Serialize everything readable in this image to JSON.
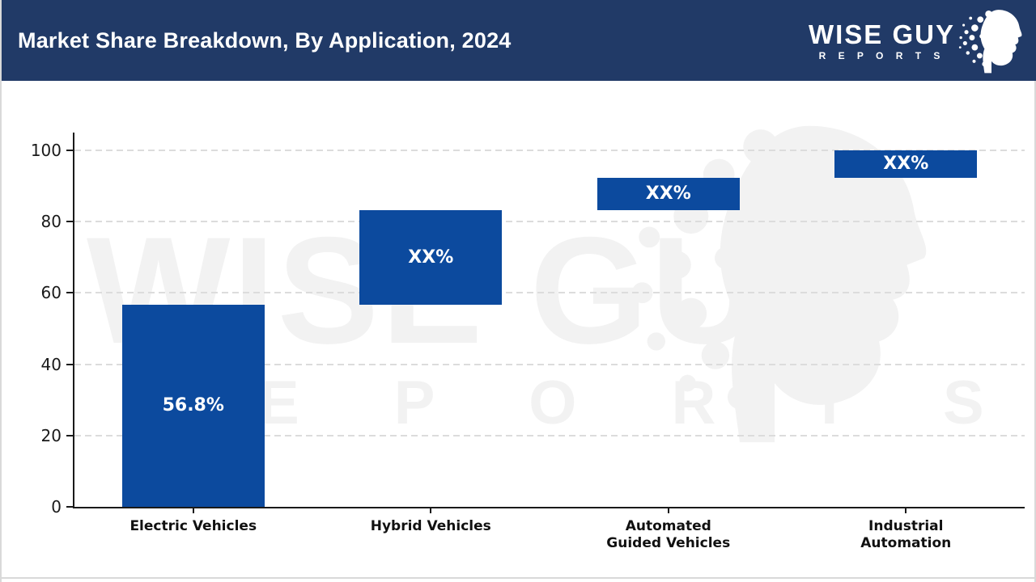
{
  "header": {
    "title": "Market Share Breakdown, By Application, 2024",
    "bg_color": "#213a67",
    "logo": {
      "line1": "WISE GUY",
      "line2": "R E P O R T S",
      "icon": "dotted-head-profile-icon"
    }
  },
  "watermark": {
    "line1": "WISE GUY",
    "line2": "R E P O R T S"
  },
  "chart_data": {
    "type": "bar",
    "subtype": "floating-waterfall",
    "title": "Market Share Breakdown, By Application, 2024",
    "categories": [
      "Electric Vehicles",
      "Hybrid Vehicles",
      "Automated Guided Vehicles",
      "Industrial Automation"
    ],
    "bars": [
      {
        "category": "Electric Vehicles",
        "start": 0,
        "end": 56.8,
        "label": "56.8%"
      },
      {
        "category": "Hybrid Vehicles",
        "start": 56.8,
        "end": 83.3,
        "label": "XX%"
      },
      {
        "category": "Automated Guided Vehicles",
        "start": 83.3,
        "end": 92.4,
        "label": "XX%"
      },
      {
        "category": "Industrial Automation",
        "start": 92.4,
        "end": 100,
        "label": "XX%"
      }
    ],
    "xlabel": "",
    "ylabel": "",
    "yticks": [
      0,
      20,
      40,
      60,
      80,
      100
    ],
    "ylim": [
      0,
      105
    ],
    "grid": "horizontal-dashed",
    "legend": "none",
    "bar_color": "#0c4a9e",
    "value_label_color": "#ffffff",
    "gridline_color": "#dcdcdc"
  }
}
